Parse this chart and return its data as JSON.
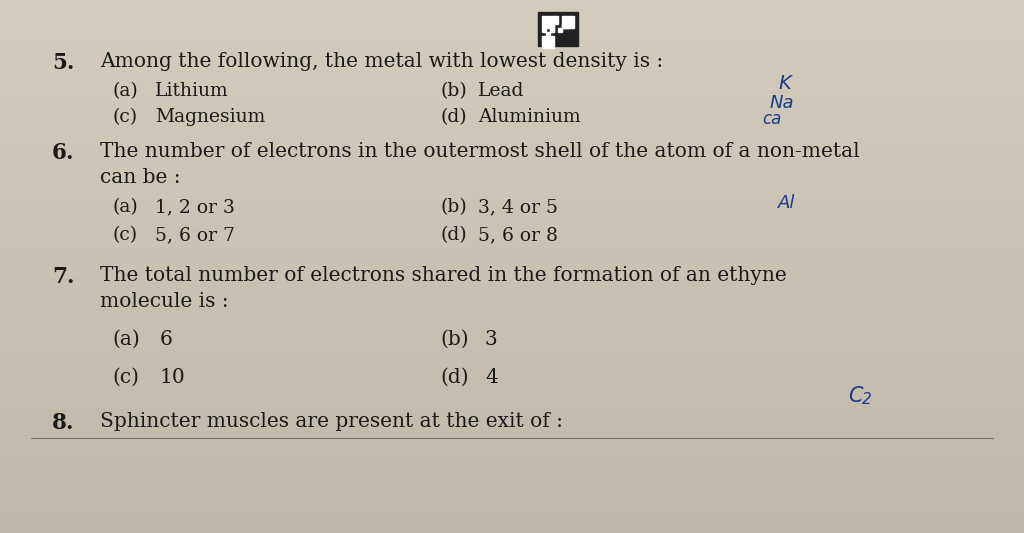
{
  "page_bg": "#c8c0b0",
  "text_color": "#1a1a1a",
  "handwrite_color": "#1a3a8a",
  "q5_number": "5.",
  "q5_text": "Among the following, the metal with lowest density is :",
  "q5_a": "Lithium",
  "q5_b": "Lead",
  "q5_c": "Magnesium",
  "q5_d": "Aluminium",
  "q6_number": "6.",
  "q6_text1": "The number of electrons in the outermost shell of the atom of a non-metal",
  "q6_text2": "can be :",
  "q6_a": "1, 2 or 3",
  "q6_b": "3, 4 or 5",
  "q6_c": "5, 6 or 7",
  "q6_d": "5, 6 or 8",
  "q7_number": "7.",
  "q7_text1": "The total number of electrons shared in the formation of an ethyne",
  "q7_text2": "molecule is :",
  "q7_a": "6",
  "q7_b": "3",
  "q7_c": "10",
  "q7_d": "4",
  "q8_number": "8.",
  "q8_text": "Sphincter muscles are present at the exit of :",
  "hw_K": "K",
  "hw_Na": "Na",
  "hw_ca": "ca",
  "hw_Al": "Al",
  "hw_C2_main": "C",
  "hw_C2_sub": "2",
  "fs_main": 14.5,
  "fs_opt": 13.5,
  "fs_num": 15.5,
  "fs_hw": 13
}
